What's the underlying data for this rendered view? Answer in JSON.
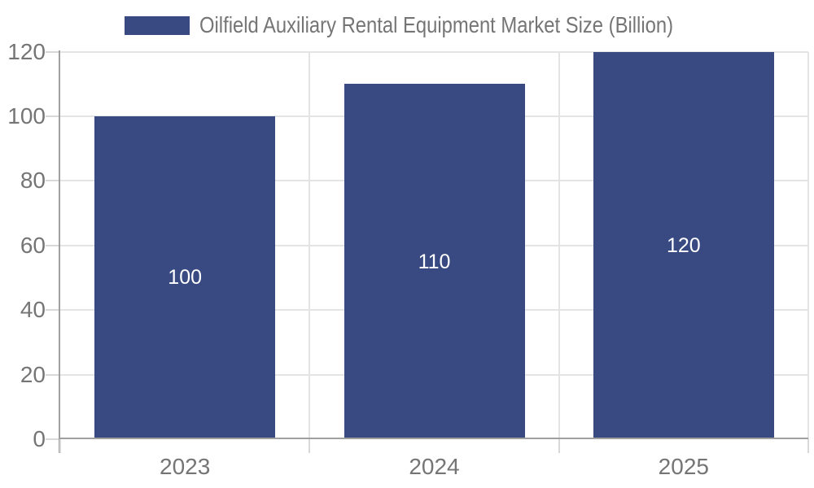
{
  "chart_data": {
    "type": "bar",
    "categories": [
      "2023",
      "2024",
      "2025"
    ],
    "values": [
      100,
      110,
      120
    ],
    "series_name": "Oilfield Auxiliary Rental Equipment Market Size (Billion)",
    "title": "",
    "xlabel": "",
    "ylabel": "",
    "ylim": [
      0,
      120
    ],
    "yticks": [
      0,
      20,
      40,
      60,
      80,
      100,
      120
    ],
    "grid": true,
    "legend_position": "top",
    "colors": {
      "bar": "#384A81",
      "value_label": "#ffffff",
      "tick_text": "#757575",
      "grid_line": "#e4e4e4",
      "tick_mark": "#d8d8d8",
      "axis_line": "#a0a0a0",
      "background": "#ffffff"
    }
  }
}
